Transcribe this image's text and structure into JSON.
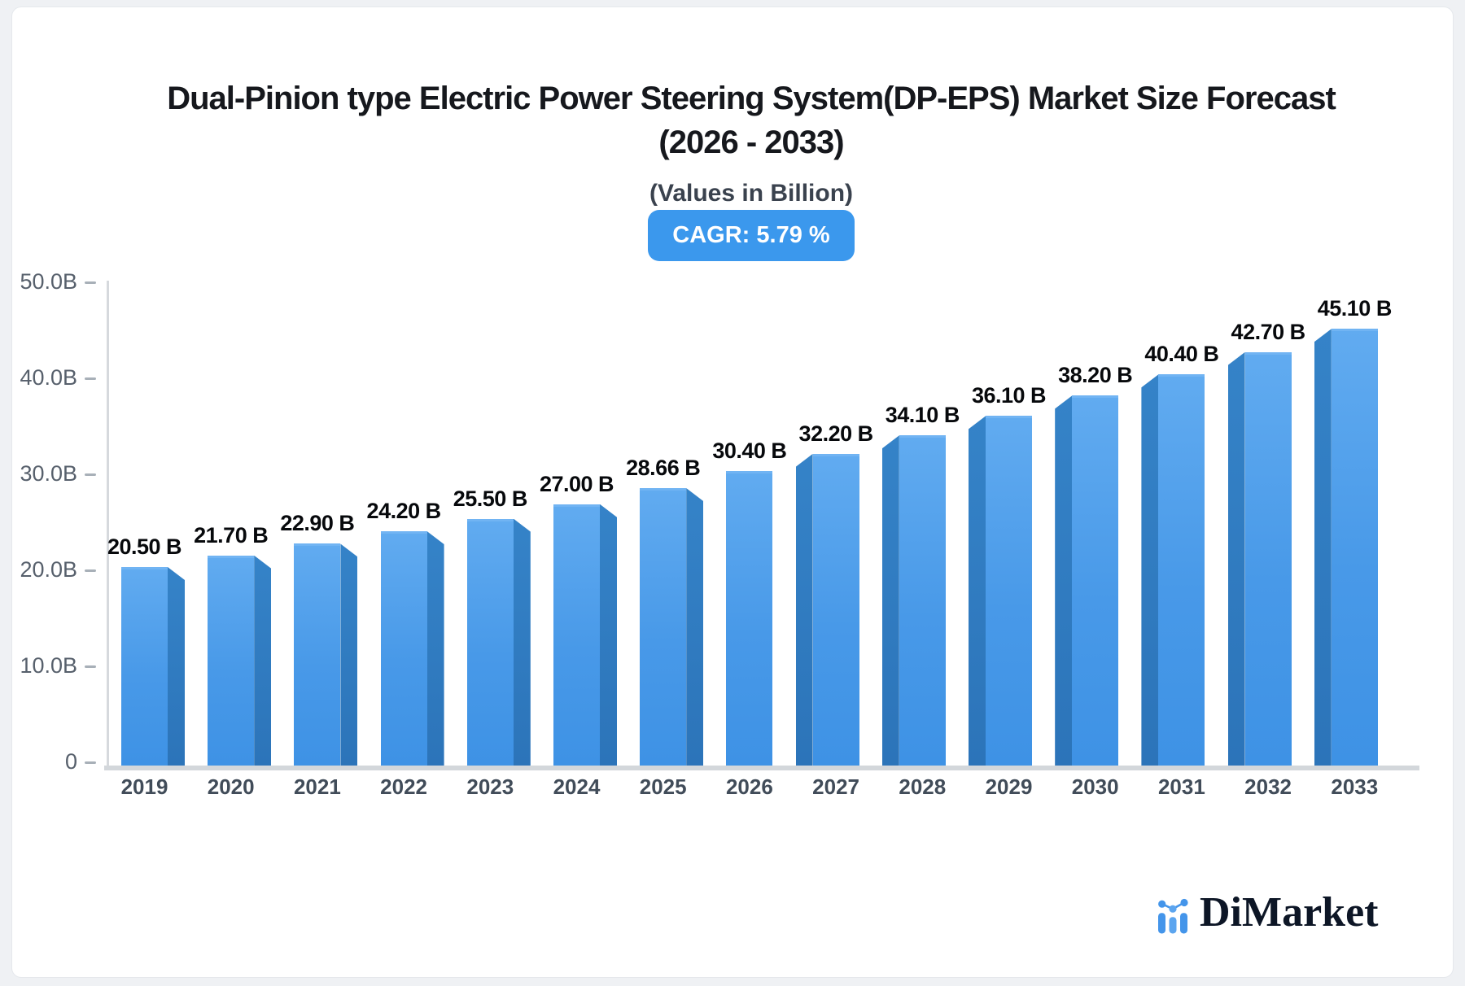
{
  "header": {
    "title_line1": "Dual-Pinion type Electric Power Steering System(DP-EPS) Market Size Forecast",
    "title_line2": "(2026 - 2033)",
    "subtitle": "(Values in Billion)",
    "cagr_badge": "CAGR: 5.79 %"
  },
  "chart_data": {
    "type": "bar",
    "title": "Dual-Pinion type Electric Power Steering System(DP-EPS) Market Size Forecast (2026 - 2033)",
    "subtitle": "(Values in Billion)",
    "cagr_pct": 5.79,
    "categories": [
      "2019",
      "2020",
      "2021",
      "2022",
      "2023",
      "2024",
      "2025",
      "2026",
      "2027",
      "2028",
      "2029",
      "2030",
      "2031",
      "2032",
      "2033"
    ],
    "values": [
      20.5,
      21.7,
      22.9,
      24.2,
      25.5,
      27.0,
      28.66,
      30.4,
      32.2,
      34.1,
      36.1,
      38.2,
      40.4,
      42.7,
      45.1
    ],
    "bar_labels": [
      "20.50 B",
      "21.70 B",
      "22.90 B",
      "24.20 B",
      "25.50 B",
      "27.00 B",
      "28.66 B",
      "30.40 B",
      "32.20 B",
      "34.10 B",
      "36.10 B",
      "38.20 B",
      "40.40 B",
      "42.70 B",
      "45.10 B"
    ],
    "y_ticks": [
      {
        "label": "50.0B",
        "value": 50
      },
      {
        "label": "40.0B",
        "value": 40
      },
      {
        "label": "30.0B",
        "value": 30
      },
      {
        "label": "20.0B",
        "value": 20
      },
      {
        "label": "10.0B",
        "value": 10
      },
      {
        "label": "0",
        "value": 0
      }
    ],
    "ylim": [
      0,
      50
    ],
    "xlabel": "",
    "ylabel": "",
    "grid": false,
    "legend": null
  },
  "colors": {
    "title-text": "#16181d",
    "subtitle-text": "#3a424e",
    "badge-bg": "#3b98ed",
    "axis-line": "#d6d9dd",
    "tick-text": "#57606c",
    "category-text": "#414c59",
    "value-label-text": "#07090c",
    "bar-top-edge": "#71b4f3",
    "bar-front-top": "#61abf0",
    "bar-front-bottom": "#3e92e5",
    "bar-side": "#2f79bf",
    "logo-blue": "#4495ea",
    "logo-blue-light": "#5ca5ef"
  },
  "branding": {
    "name": "DiMarket",
    "icon": "bar-chart-logo-icon"
  }
}
